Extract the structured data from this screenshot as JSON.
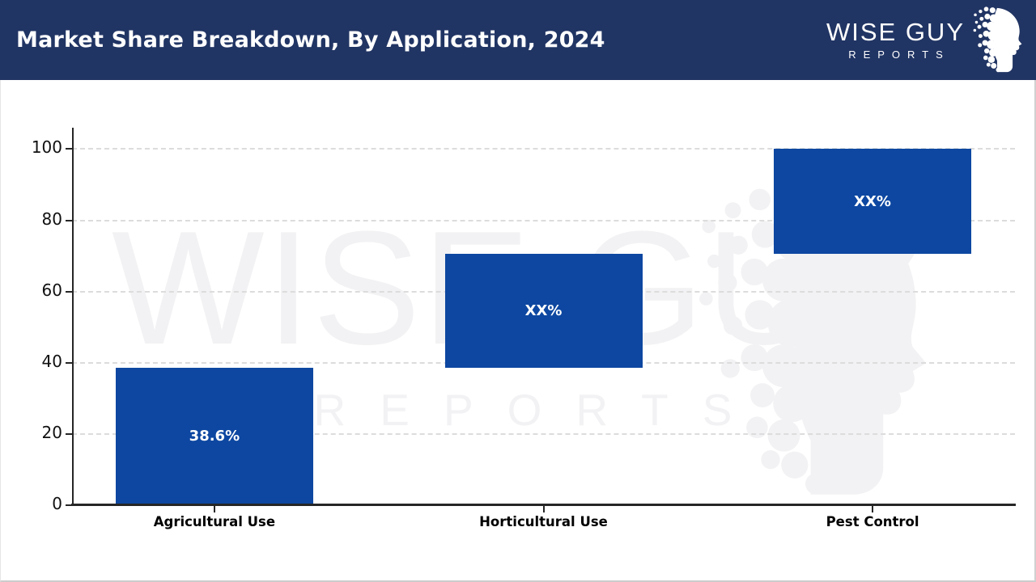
{
  "colors": {
    "header_bg": "#213564",
    "bar": "#0d47a1",
    "watermark": "#f2f2f4",
    "axis": "#262626",
    "gridline": "#dcdcdc"
  },
  "header": {
    "title": "Market Share Breakdown, By Application, 2024"
  },
  "brand": {
    "line1": "WISE GUY",
    "line2": "REPORTS"
  },
  "watermark": {
    "line1": "WISE GUY",
    "line2": "REPORTS"
  },
  "chart_data": {
    "type": "bar",
    "subtype": "floating-segment-waterfall",
    "title": "Market Share Breakdown, By Application, 2024",
    "categories": [
      "Agricultural Use",
      "Horticultural Use",
      "Pest Control"
    ],
    "segments": [
      {
        "category": "Agricultural Use",
        "start": 0,
        "end": 38.6,
        "label": "38.6%"
      },
      {
        "category": "Horticultural Use",
        "start": 38.6,
        "end": 70.5,
        "label": "XX%"
      },
      {
        "category": "Pest Control",
        "start": 70.5,
        "end": 100,
        "label": "XX%"
      }
    ],
    "yticks": [
      0,
      20,
      40,
      60,
      80,
      100
    ],
    "ylim": [
      0,
      106
    ],
    "xlabel": "",
    "ylabel": "",
    "grid": "horizontal-dashed",
    "legend": "none",
    "bar_label_color": "#ffffff"
  }
}
